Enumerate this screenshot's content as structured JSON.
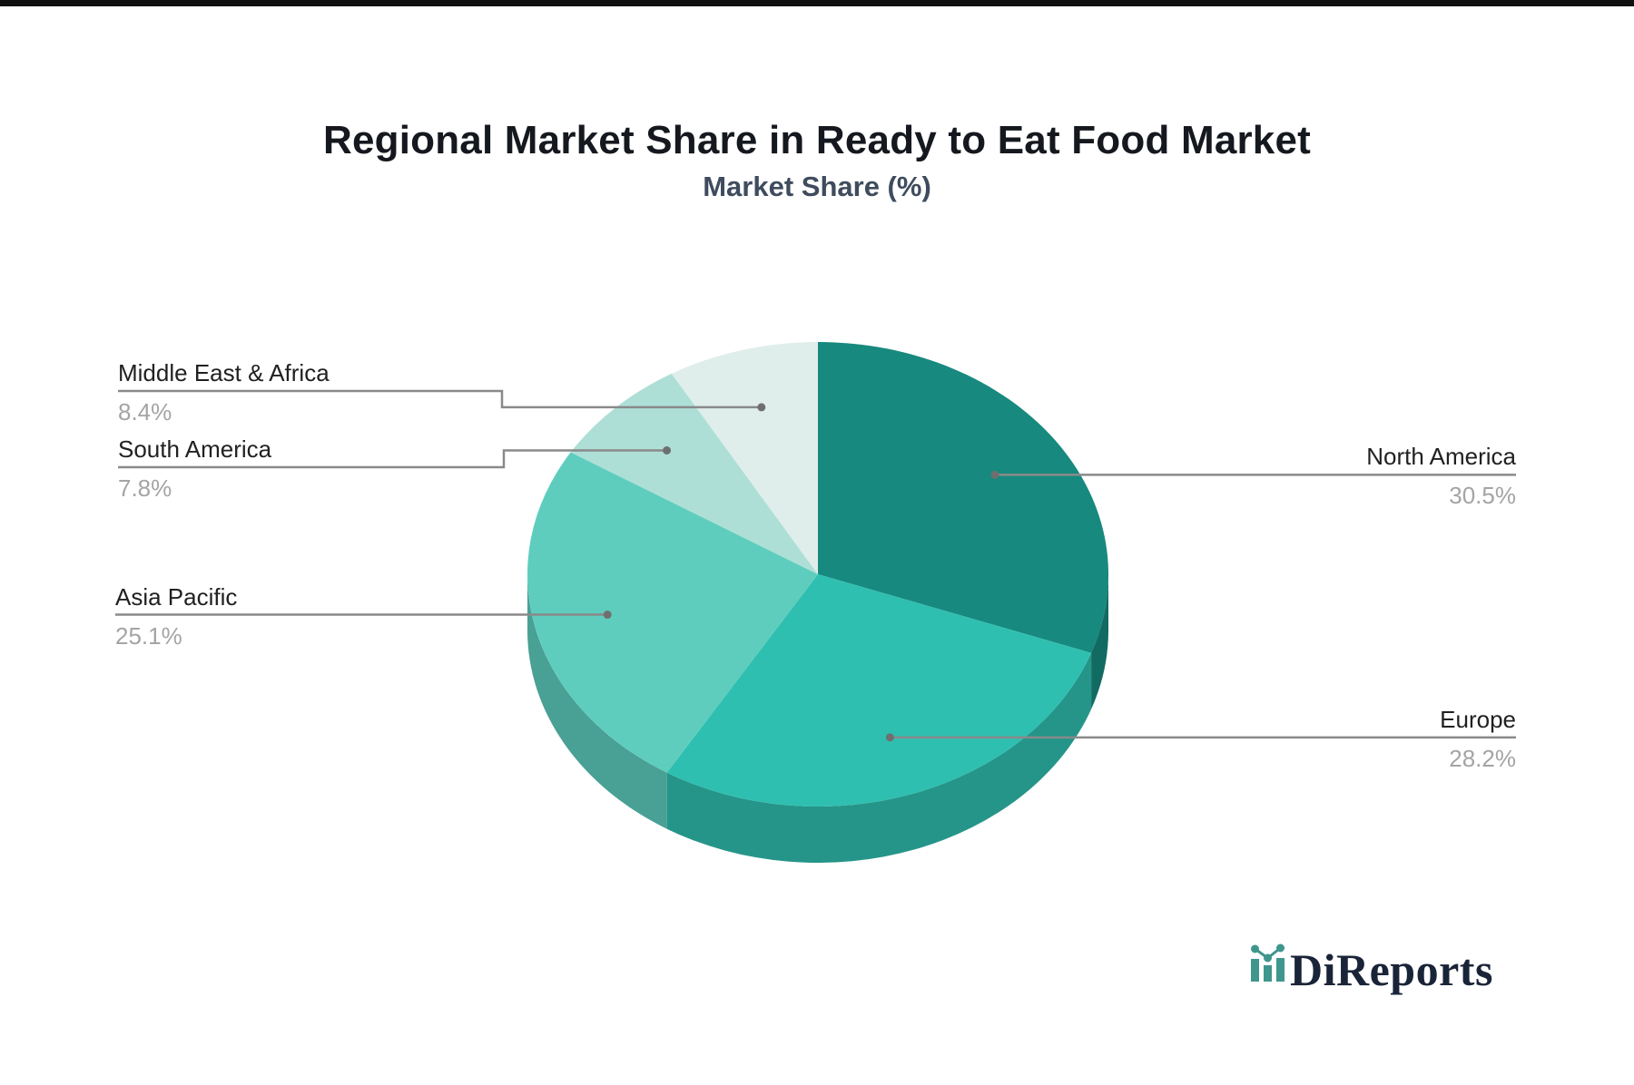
{
  "page": {
    "background": "#ffffff",
    "top_border_color": "#101010"
  },
  "chart_data": {
    "type": "pie",
    "title": "Regional Market Share in Ready to Eat Food Market",
    "subtitle": "Market Share (%)",
    "unit": "%",
    "start_angle_deg": 0,
    "direction": "clockwise",
    "style": "3d-ellipse",
    "legend_position": "none",
    "slices": [
      {
        "id": "north-america",
        "label": "North America",
        "value": 30.5,
        "pct_label": "30.5%",
        "color": "#17897e",
        "label_side": "right"
      },
      {
        "id": "europe",
        "label": "Europe",
        "value": 28.2,
        "pct_label": "28.2%",
        "color": "#2fbfb0",
        "label_side": "right"
      },
      {
        "id": "asia-pacific",
        "label": "Asia Pacific",
        "value": 25.1,
        "pct_label": "25.1%",
        "color": "#5ecdbe",
        "label_side": "left"
      },
      {
        "id": "south-america",
        "label": "South America",
        "value": 7.8,
        "pct_label": "7.8%",
        "color": "#aedfd7",
        "label_side": "left"
      },
      {
        "id": "middle-east-africa",
        "label": "Middle East & Africa",
        "value": 8.4,
        "pct_label": "8.4%",
        "color": "#dfeeeb",
        "label_side": "left"
      }
    ],
    "label_name_color": "#212121",
    "label_pct_color": "#a4a4a4",
    "leader_line_color": "#8a8a8a",
    "leader_dot_color": "#6f6f6f"
  },
  "logo": {
    "text": "DiReports",
    "text_color": "#1a2438",
    "icon": "bar-line-chart-icon",
    "icon_color": "#3f968d"
  }
}
